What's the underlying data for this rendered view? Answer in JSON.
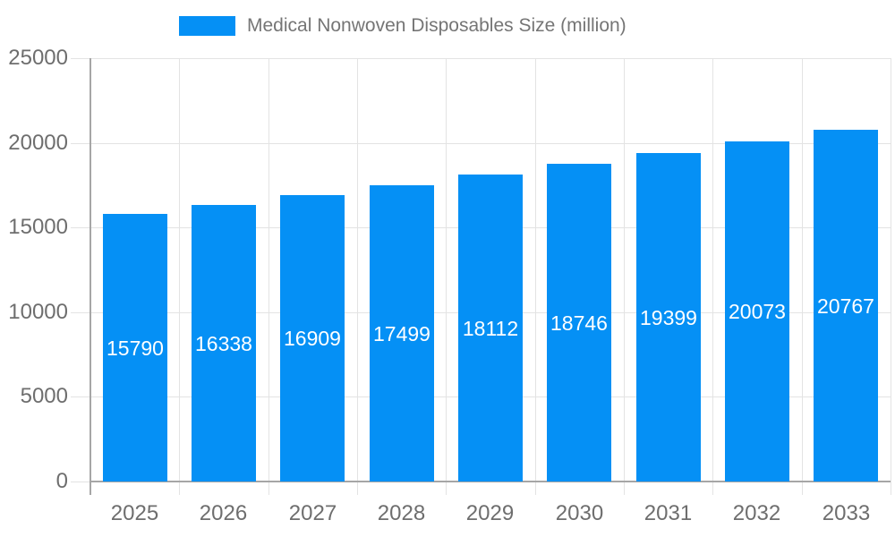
{
  "chart_data": {
    "type": "bar",
    "title": "Medical Nonwoven Disposables Size (million)",
    "series_name": "Medical Nonwoven Disposables Size (million)",
    "categories": [
      "2025",
      "2026",
      "2027",
      "2028",
      "2029",
      "2030",
      "2031",
      "2032",
      "2033"
    ],
    "values": [
      15790,
      16338,
      16909,
      17499,
      18112,
      18746,
      19399,
      20073,
      20767
    ],
    "value_labels": [
      "15790",
      "16338",
      "16909",
      "17499",
      "18112",
      "18746",
      "19399",
      "20073",
      "20767"
    ],
    "xlabel": "",
    "ylabel": "",
    "ylim": [
      0,
      25000
    ],
    "yticks": [
      0,
      5000,
      10000,
      15000,
      20000,
      25000
    ],
    "grid": true,
    "legend_position": "top",
    "value_labels_inside_bars": true
  },
  "legend": {
    "label": "Medical Nonwoven Disposables Size (million)"
  },
  "colors": {
    "bar": "#0590F5",
    "bar_value_text": "#ffffff",
    "gridline": "#e3e3e3",
    "axis_line": "#a6a6a6",
    "axis_text": "#6e6e6e",
    "legend_text": "#757575",
    "background": "#ffffff"
  }
}
